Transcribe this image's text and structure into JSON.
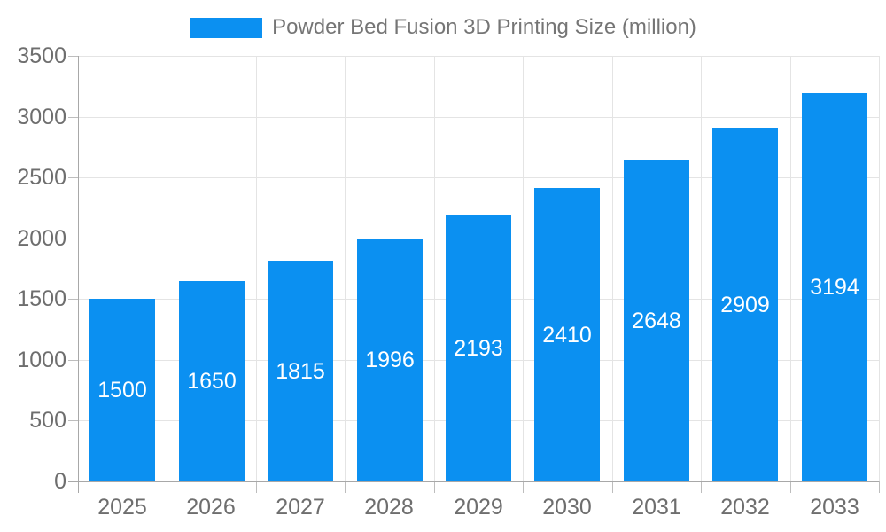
{
  "chart_data": {
    "type": "bar",
    "title": "Powder Bed Fusion 3D Printing Size (million)",
    "categories": [
      "2025",
      "2026",
      "2027",
      "2028",
      "2029",
      "2030",
      "2031",
      "2032",
      "2033"
    ],
    "values": [
      1500,
      1650,
      1815,
      1996,
      2193,
      2410,
      2648,
      2909,
      3194
    ],
    "series": [
      {
        "name": "Powder Bed Fusion 3D Printing Size (million)",
        "values": [
          1500,
          1650,
          1815,
          1996,
          2193,
          2410,
          2648,
          2909,
          3194
        ]
      }
    ],
    "xlabel": "",
    "ylabel": "",
    "ylim": [
      0,
      3500
    ],
    "yticks": [
      0,
      500,
      1000,
      1500,
      2000,
      2500,
      3000,
      3500
    ],
    "ytick_step": 500,
    "grid": true,
    "value_labels": "inside-center-white",
    "legend_position": "top-center",
    "colors": {
      "bar": "#0b90f1",
      "value_label": "#ffffff",
      "axis_text": "#6e6e6e",
      "legend_text": "#757575",
      "axis_line": "#a8a8a8",
      "tick": "#bdbdbd",
      "grid": "#e4e4e4",
      "background": "#ffffff"
    }
  }
}
